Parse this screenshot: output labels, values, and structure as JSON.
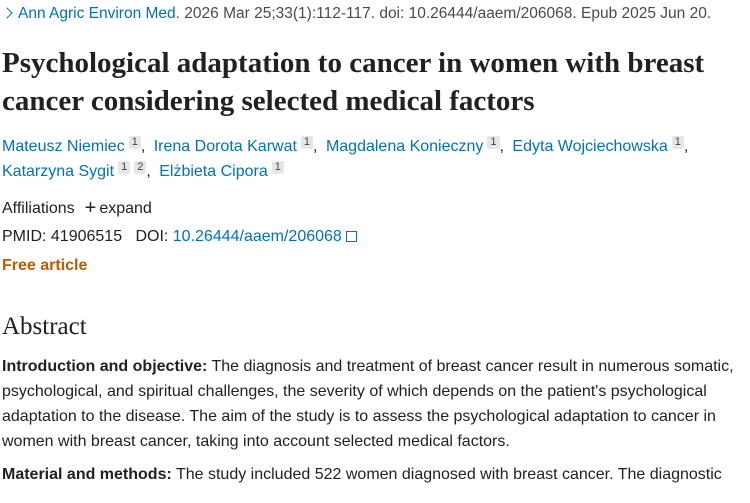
{
  "citation": {
    "journal": "Ann Agric Environ Med.",
    "details": "2026 Mar 25;33(1):112-117. doi: 10.26444/aaem/206068. Epub 2025 Jun 20."
  },
  "title": "Psychological adaptation to cancer in women with breast cancer considering selected medical factors",
  "authors": [
    {
      "name": "Mateusz Niemiec",
      "affiliations": [
        "1"
      ]
    },
    {
      "name": "Irena Dorota Karwat",
      "affiliations": [
        "1"
      ]
    },
    {
      "name": "Magdalena Konieczny",
      "affiliations": [
        "1"
      ]
    },
    {
      "name": "Edyta Wojciechowska",
      "affiliations": [
        "1"
      ]
    },
    {
      "name": "Katarzyna Sygit",
      "affiliations": [
        "1",
        "2"
      ]
    },
    {
      "name": "Elżbieta Cipora",
      "affiliations": [
        "1"
      ]
    }
  ],
  "affiliations": {
    "label": "Affiliations",
    "expand": "expand"
  },
  "ids": {
    "pmid_label": "PMID:",
    "pmid": "41906515",
    "doi_label": "DOI:",
    "doi": "10.26444/aaem/206068"
  },
  "free": "Free article",
  "abstract": {
    "heading": "Abstract",
    "paragraphs": [
      {
        "label": "Introduction and objective:",
        "text": "The diagnosis and treatment of breast cancer result in numerous somatic, psychological, and spiritual challenges, the severity of which depends on the patient's psychological adaptation to the disease. The aim of the study is to assess the psychological adaptation to cancer in women with breast cancer, taking into account selected medical factors."
      },
      {
        "label": "Material and methods:",
        "text": "The study included 522 women diagnosed with breast cancer. The diagnostic"
      }
    ]
  }
}
